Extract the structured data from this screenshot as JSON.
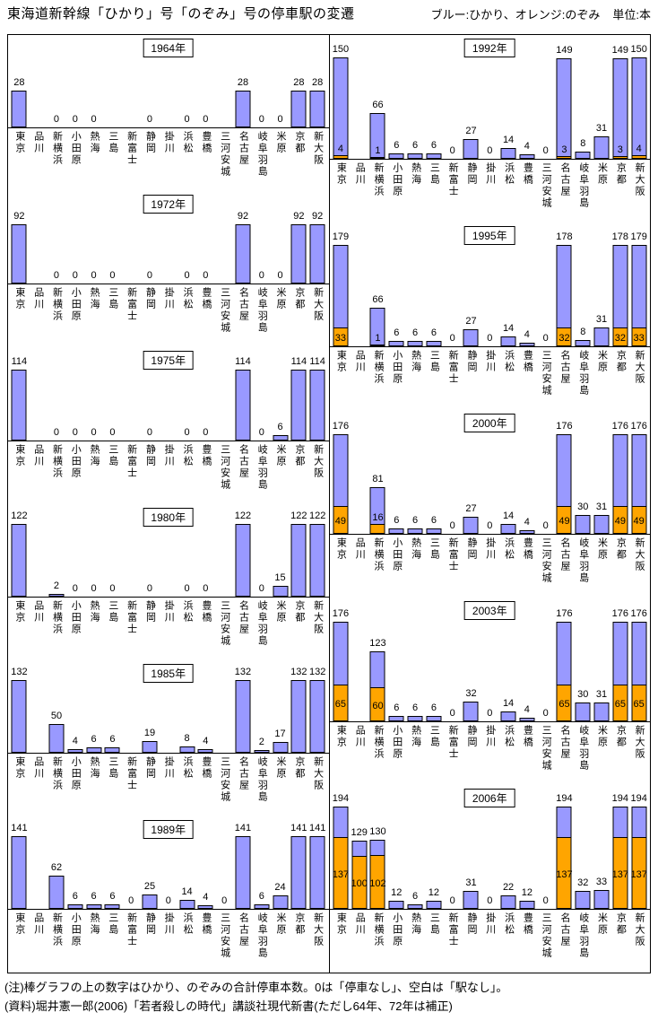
{
  "header": {
    "title": "東海道新幹線「ひかり」号「のぞみ」号の停車駅の変遷",
    "legend": "ブルー:ひかり、オレンジ:のぞみ",
    "unit": "単位:本"
  },
  "colors": {
    "hikari": "#9999ff",
    "nozomi": "#ffa500",
    "border": "#000000",
    "background": "#ffffff"
  },
  "notes": [
    "(注)棒グラフの上の数字はひかり、のぞみの合計停車本数。0は「停車なし」、空白は「駅なし」。",
    "(資料)堀井憲一郎(2006)「若者殺しの時代」講談社現代新書(ただし64年、72年は補正)"
  ],
  "chart_data": {
    "type": "bar",
    "stacked": true,
    "unit": "本",
    "grid": false,
    "legend_entries": [
      {
        "name": "ひかり",
        "color": "#9999ff"
      },
      {
        "name": "のぞみ",
        "color": "#ffa500"
      }
    ],
    "categories": [
      "東京",
      "品川",
      "新横浜",
      "小田原",
      "熱海",
      "三島",
      "新富士",
      "静岡",
      "掛川",
      "浜松",
      "豊橋",
      "三河安城",
      "名古屋",
      "岐阜羽島",
      "米原",
      "京都",
      "新大阪"
    ],
    "charts": [
      {
        "year": "1964年",
        "column": "left",
        "ylim": [
          0,
          60
        ],
        "totals": [
          28,
          null,
          0,
          0,
          0,
          null,
          null,
          0,
          null,
          0,
          0,
          null,
          28,
          0,
          0,
          28,
          28
        ],
        "nozomi": [
          0,
          null,
          0,
          0,
          0,
          null,
          null,
          0,
          null,
          0,
          0,
          null,
          0,
          0,
          0,
          0,
          0
        ]
      },
      {
        "year": "1972年",
        "column": "left",
        "ylim": [
          0,
          120
        ],
        "totals": [
          92,
          null,
          0,
          0,
          0,
          0,
          null,
          0,
          null,
          0,
          0,
          null,
          92,
          0,
          0,
          92,
          92
        ],
        "nozomi": [
          0,
          null,
          0,
          0,
          0,
          0,
          null,
          0,
          null,
          0,
          0,
          null,
          0,
          0,
          0,
          0,
          0
        ]
      },
      {
        "year": "1975年",
        "column": "left",
        "ylim": [
          0,
          125
        ],
        "totals": [
          114,
          null,
          0,
          0,
          0,
          0,
          null,
          0,
          null,
          0,
          0,
          null,
          114,
          0,
          6,
          114,
          114
        ],
        "nozomi": [
          0,
          null,
          0,
          0,
          0,
          0,
          null,
          0,
          null,
          0,
          0,
          null,
          0,
          0,
          0,
          0,
          0
        ]
      },
      {
        "year": "1980年",
        "column": "left",
        "ylim": [
          0,
          130
        ],
        "totals": [
          122,
          null,
          2,
          0,
          0,
          0,
          null,
          0,
          null,
          0,
          0,
          null,
          122,
          0,
          15,
          122,
          122
        ],
        "nozomi": [
          0,
          null,
          0,
          0,
          0,
          0,
          null,
          0,
          null,
          0,
          0,
          null,
          0,
          0,
          0,
          0,
          0
        ]
      },
      {
        "year": "1985年",
        "column": "left",
        "ylim": [
          0,
          140
        ],
        "totals": [
          132,
          null,
          50,
          4,
          6,
          6,
          null,
          19,
          null,
          8,
          4,
          null,
          132,
          2,
          17,
          132,
          132
        ],
        "nozomi": [
          0,
          null,
          0,
          0,
          0,
          0,
          null,
          0,
          null,
          0,
          0,
          null,
          0,
          0,
          0,
          0,
          0
        ]
      },
      {
        "year": "1989年",
        "column": "left",
        "ylim": [
          0,
          150
        ],
        "totals": [
          141,
          null,
          62,
          6,
          6,
          6,
          0,
          25,
          0,
          14,
          4,
          0,
          141,
          6,
          24,
          141,
          141
        ],
        "nozomi": [
          0,
          null,
          0,
          0,
          0,
          0,
          0,
          0,
          0,
          0,
          0,
          0,
          0,
          0,
          0,
          0,
          0
        ]
      },
      {
        "year": "1992年",
        "column": "right",
        "ylim": [
          0,
          160
        ],
        "totals": [
          150,
          null,
          66,
          6,
          6,
          6,
          0,
          27,
          0,
          14,
          4,
          0,
          149,
          8,
          31,
          149,
          150
        ],
        "nozomi": [
          4,
          null,
          1,
          0,
          0,
          0,
          0,
          0,
          0,
          0,
          0,
          0,
          3,
          0,
          0,
          3,
          4
        ]
      },
      {
        "year": "1995年",
        "column": "right",
        "ylim": [
          0,
          190
        ],
        "totals": [
          179,
          null,
          66,
          6,
          6,
          6,
          0,
          27,
          0,
          14,
          4,
          0,
          178,
          8,
          31,
          178,
          179
        ],
        "nozomi": [
          33,
          null,
          1,
          0,
          0,
          0,
          0,
          0,
          0,
          0,
          0,
          0,
          32,
          0,
          0,
          32,
          33
        ]
      },
      {
        "year": "2000年",
        "column": "right",
        "ylim": [
          0,
          190
        ],
        "totals": [
          176,
          null,
          81,
          6,
          6,
          6,
          0,
          27,
          0,
          14,
          4,
          0,
          176,
          30,
          31,
          176,
          176
        ],
        "nozomi": [
          49,
          null,
          16,
          0,
          0,
          0,
          0,
          0,
          0,
          0,
          0,
          0,
          49,
          0,
          0,
          49,
          49
        ]
      },
      {
        "year": "2003年",
        "column": "right",
        "ylim": [
          0,
          190
        ],
        "totals": [
          176,
          null,
          123,
          6,
          6,
          6,
          0,
          32,
          0,
          14,
          4,
          0,
          176,
          30,
          31,
          176,
          176
        ],
        "nozomi": [
          65,
          null,
          60,
          0,
          0,
          0,
          0,
          0,
          0,
          0,
          0,
          0,
          65,
          0,
          0,
          65,
          65
        ]
      },
      {
        "year": "2006年",
        "column": "right",
        "ylim": [
          0,
          205
        ],
        "totals": [
          194,
          129,
          130,
          12,
          6,
          12,
          0,
          31,
          0,
          22,
          12,
          0,
          194,
          32,
          33,
          194,
          194
        ],
        "nozomi": [
          137,
          100,
          102,
          0,
          0,
          0,
          0,
          0,
          0,
          0,
          0,
          0,
          137,
          0,
          0,
          137,
          137
        ]
      }
    ]
  }
}
